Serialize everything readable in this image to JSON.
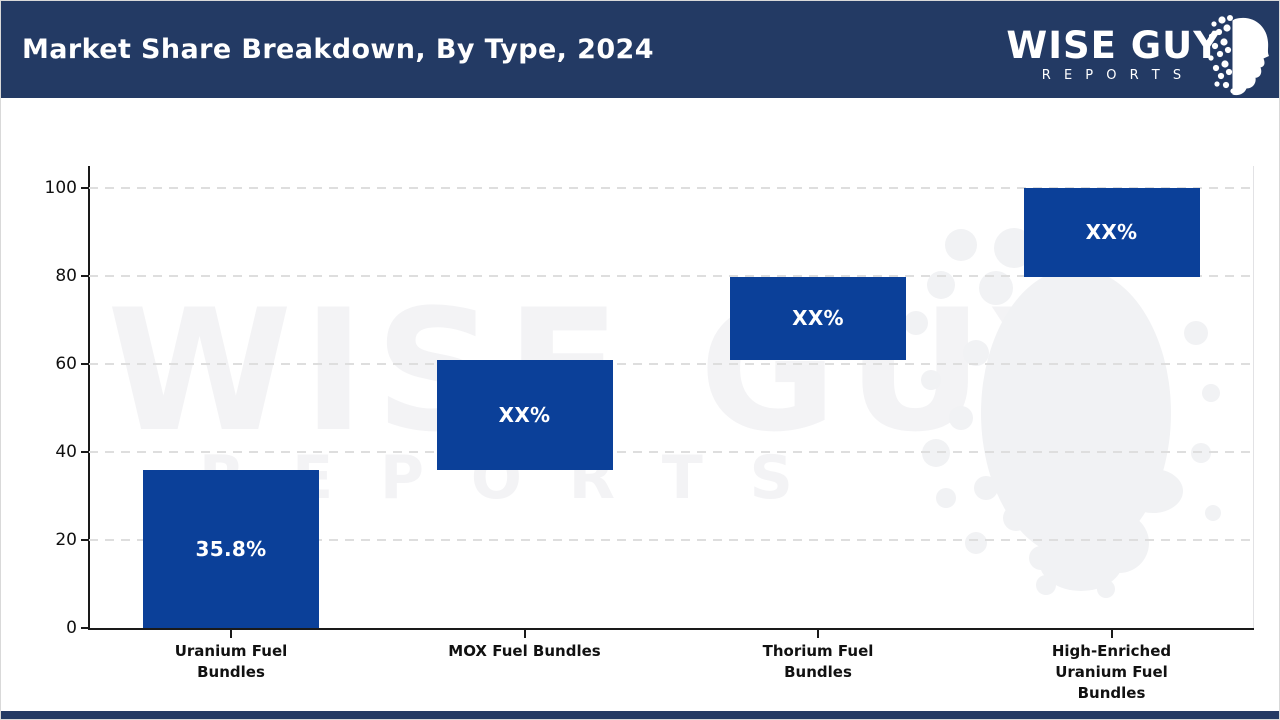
{
  "header": {
    "title": "Market Share Breakdown, By Type, 2024",
    "logo": {
      "line1": "WISE GUY",
      "line2": "R E P O R T S"
    }
  },
  "watermark": {
    "line1": "WISE GUY",
    "line2": "R E P O R T S"
  },
  "footer": {},
  "chart_data": {
    "type": "bar",
    "subtype": "waterfall",
    "title": "Market Share Breakdown, By Type, 2024",
    "categories": [
      "Uranium Fuel Bundles",
      "MOX Fuel Bundles",
      "Thorium Fuel Bundles",
      "High-Enriched Uranium Fuel Bundles"
    ],
    "category_lines": [
      [
        "Uranium Fuel",
        "Bundles"
      ],
      [
        "MOX Fuel Bundles"
      ],
      [
        "Thorium Fuel",
        "Bundles"
      ],
      [
        "High-Enriched",
        "Uranium Fuel",
        "Bundles"
      ]
    ],
    "segments": [
      {
        "category": "Uranium Fuel Bundles",
        "start": 0,
        "end": 35.8,
        "label": "35.8%"
      },
      {
        "category": "MOX Fuel Bundles",
        "start": 35.8,
        "end": 61,
        "label": "XX%"
      },
      {
        "category": "Thorium Fuel Bundles",
        "start": 61,
        "end": 79.8,
        "label": "XX%"
      },
      {
        "category": "High-Enriched Uranium Fuel Bundles",
        "start": 79.8,
        "end": 100,
        "label": "XX%"
      }
    ],
    "ylim": [
      0,
      100
    ],
    "yticks": [
      0,
      20,
      40,
      60,
      80,
      100
    ],
    "xlabel": "",
    "ylabel": "",
    "grid": "horizontal-dashed",
    "legend": "none",
    "bar_color": "#0B4099",
    "bar_label_color": "#ffffff",
    "header_color": "#233A64",
    "gridline_color": "#dedede",
    "axis_color": "#1a1a1a"
  }
}
